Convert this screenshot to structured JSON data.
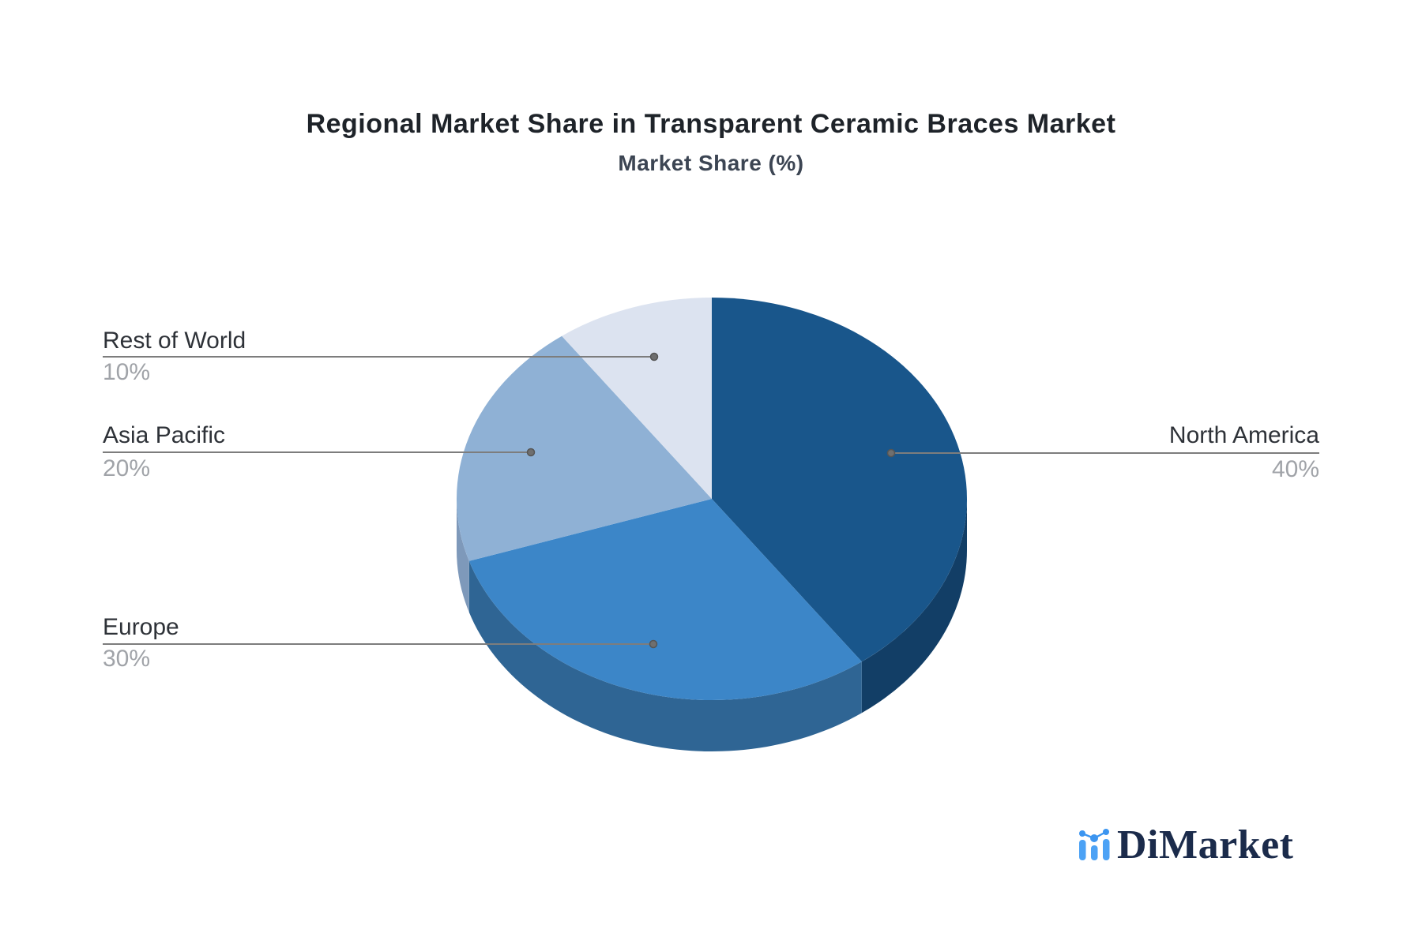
{
  "page": {
    "title": "Regional Market Share in Transparent Ceramic Braces Market",
    "subtitle": "Market Share (%)"
  },
  "logo": {
    "name": "DiMarket",
    "icon": "bar-line-chart-icon"
  },
  "chart_data": {
    "type": "pie",
    "style": "3d",
    "title": "Regional Market Share in Transparent Ceramic Braces Market",
    "subtitle": "Market Share (%)",
    "unit": "%",
    "total": 100,
    "start_angle_deg": 0,
    "direction": "clockwise",
    "legend_position": "none",
    "labels_style": "callout-leader-lines",
    "slices": [
      {
        "label": "North America",
        "value": 40,
        "display_value": "40%",
        "color": "#19568B",
        "side_color": "#123E66",
        "label_position": "right"
      },
      {
        "label": "Europe",
        "value": 30,
        "display_value": "30%",
        "color": "#3C86C8",
        "side_color": "#2F6594",
        "label_position": "left"
      },
      {
        "label": "Asia Pacific",
        "value": 20,
        "display_value": "20%",
        "color": "#8FB1D5",
        "side_color": "#7E99BA",
        "label_position": "left"
      },
      {
        "label": "Rest of World",
        "value": 10,
        "display_value": "10%",
        "color": "#DCE3F0",
        "side_color": "#C3CCDD",
        "label_position": "left"
      }
    ],
    "leader_line_color": "#7d7d7d",
    "leader_dot_color": "#6f6f6f",
    "label_text_color": "#2e3238",
    "value_text_color": "#a0a3a8"
  }
}
